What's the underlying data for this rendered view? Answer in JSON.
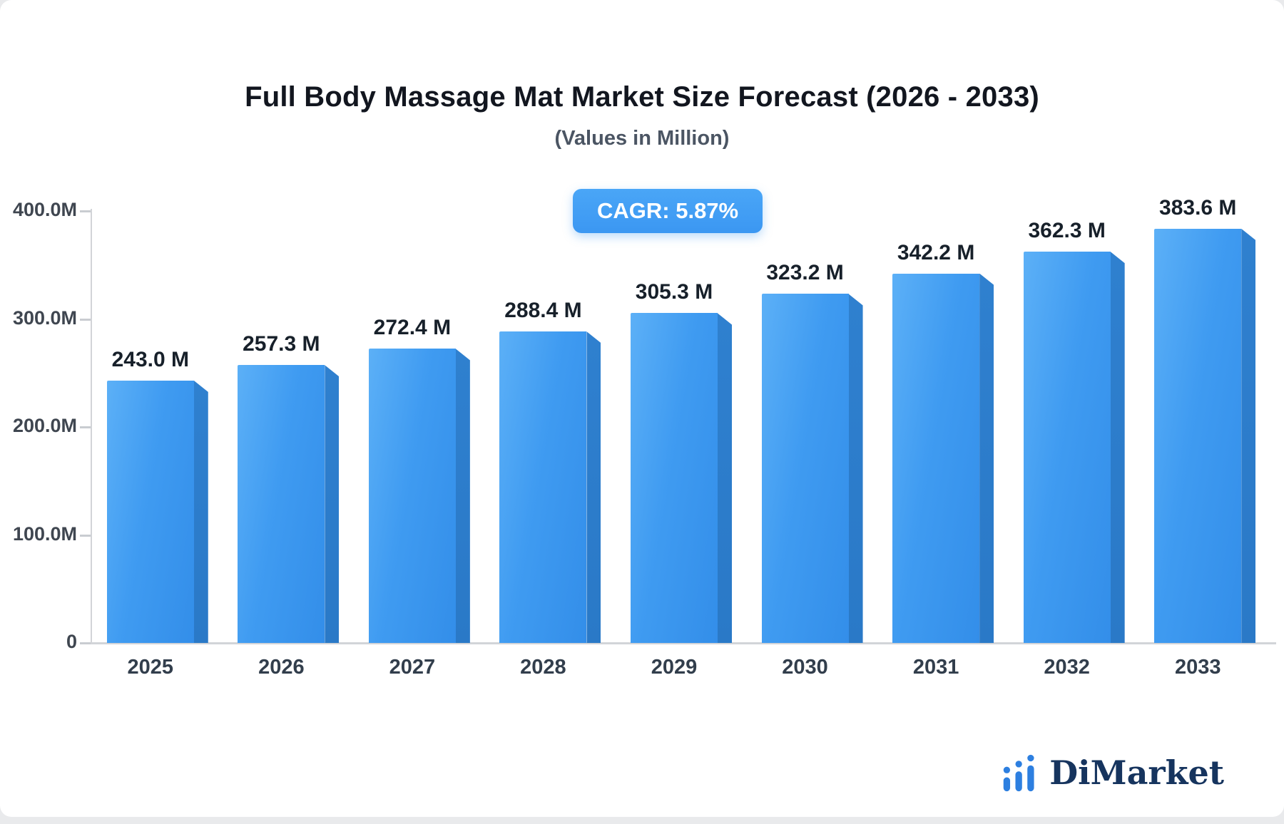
{
  "header": {
    "title": "Full Body Massage Mat Market Size Forecast (2026 - 2033)",
    "subtitle": "(Values in Million)"
  },
  "badge": {
    "label": "CAGR: 5.87%"
  },
  "chart_data": {
    "type": "bar",
    "title": "Full Body Massage Mat Market Size Forecast (2026 - 2033)",
    "subtitle": "(Values in Million)",
    "categories": [
      "2025",
      "2026",
      "2027",
      "2028",
      "2029",
      "2030",
      "2031",
      "2032",
      "2033"
    ],
    "values": [
      243.0,
      257.3,
      272.4,
      288.4,
      305.3,
      323.2,
      342.2,
      362.3,
      383.6
    ],
    "value_labels": [
      "243.0 M",
      "257.3 M",
      "272.4 M",
      "288.4 M",
      "305.3 M",
      "323.2 M",
      "342.2 M",
      "362.3 M",
      "383.6 M"
    ],
    "xlabel": "",
    "ylabel": "",
    "ylim": [
      0,
      400
    ],
    "ytick_values": [
      0,
      100,
      200,
      300,
      400
    ],
    "ytick_labels": [
      "0",
      "100.0M",
      "200.0M",
      "300.0M",
      "400.0M"
    ],
    "grid": false,
    "legend": "none",
    "annotation": "CAGR: 5.87%",
    "bar_color": "#3E9AF0",
    "bar_side_color": "#2A79C7"
  },
  "logo": {
    "text": "DiMarket",
    "icon": "bar-chart-logo-icon"
  },
  "colors": {
    "accent_blue": "#3E9AF0",
    "badge_blue": "#3FA0F5",
    "title_dark": "#12161F",
    "axis_gray": "#D2D4D8",
    "label_dark": "#323E4C"
  }
}
